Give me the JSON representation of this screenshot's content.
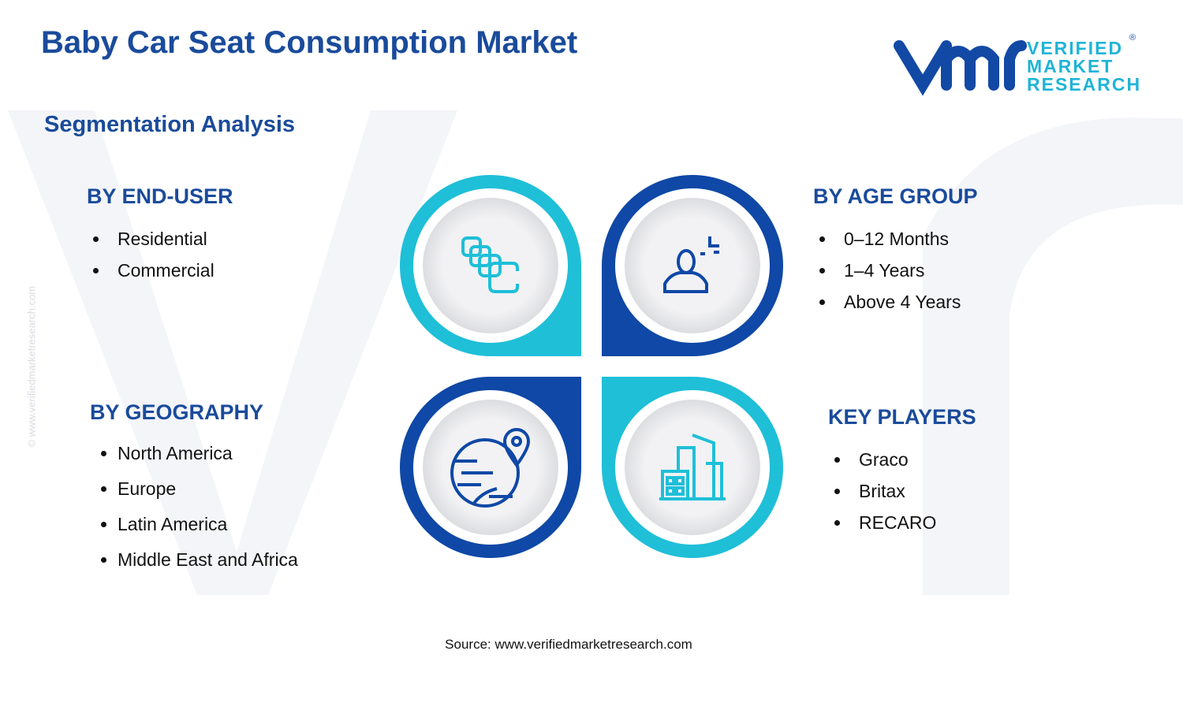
{
  "header": {
    "title": "Baby Car Seat Consumption Market",
    "subtitle": "Segmentation Analysis"
  },
  "logo": {
    "line1": "VERIFIED",
    "line2": "MARKET",
    "line3": "RESEARCH",
    "mark": "®"
  },
  "watermark": "© www.verifiedmarketresearch.com",
  "segments": [
    {
      "title": "BY END-USER",
      "items": [
        "Residential",
        "Commercial"
      ]
    },
    {
      "title": "BY AGE GROUP",
      "items": [
        "0–12 Months",
        "1–4 Years",
        "Above 4 Years"
      ]
    },
    {
      "title": "BY GEOGRAPHY",
      "items": [
        "North America",
        "Europe",
        "Latin America",
        "Middle East and Africa"
      ]
    },
    {
      "title": "KEY PLAYERS",
      "items": [
        "Graco",
        "Britax",
        "RECARO"
      ]
    }
  ],
  "source": "Source: www.verifiedmarketresearch.com"
}
